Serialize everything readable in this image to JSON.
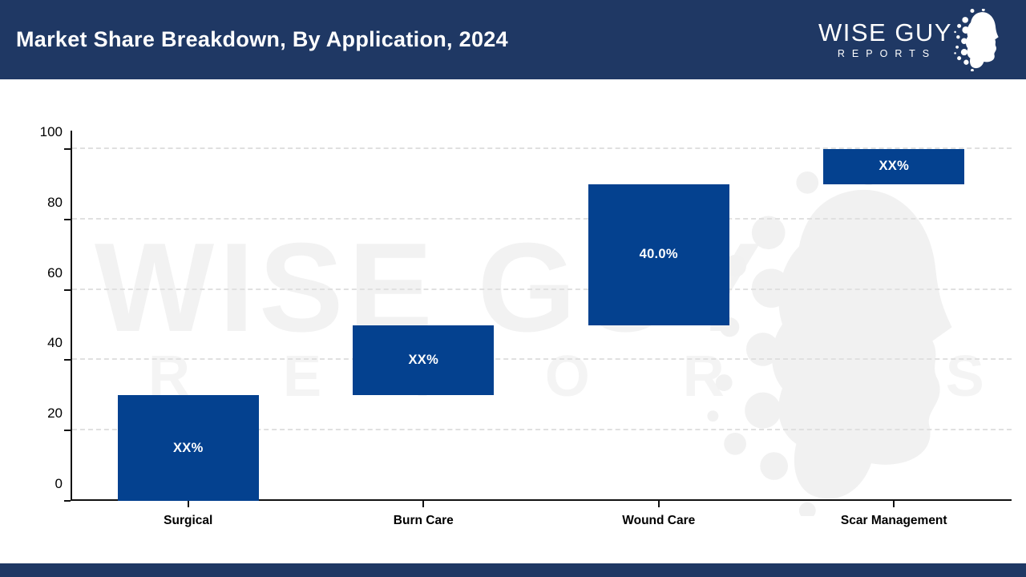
{
  "header": {
    "title": "Market Share Breakdown, By Application, 2024",
    "logo": {
      "line1": "WISE GUY",
      "line2": "REPORTS"
    }
  },
  "watermark": {
    "line1": "WISE GUY",
    "line2": "R E P O R T S"
  },
  "colors": {
    "header_bg": "#1f3864",
    "bar": "#04418f",
    "grid": "#e0e0e0",
    "watermark": "#f2f2f2",
    "bar_label_text": "#ffffff"
  },
  "chart_data": {
    "type": "bar",
    "subtype": "waterfall",
    "title": "Market Share Breakdown, By Application, 2024",
    "categories": [
      "Surgical",
      "Burn Care",
      "Wound Care",
      "Scar Management"
    ],
    "values": [
      30,
      20,
      40,
      10
    ],
    "bases": [
      0,
      30,
      50,
      90
    ],
    "cumulative": [
      30,
      50,
      90,
      100
    ],
    "bar_labels": [
      "XX%",
      "XX%",
      "40.0%",
      "XX%"
    ],
    "xlabel": "",
    "ylabel": "",
    "ylim": [
      0,
      100
    ],
    "yticks": [
      0,
      20,
      40,
      60,
      80,
      100
    ],
    "grid": "horizontal-dashed",
    "legend": "none"
  }
}
